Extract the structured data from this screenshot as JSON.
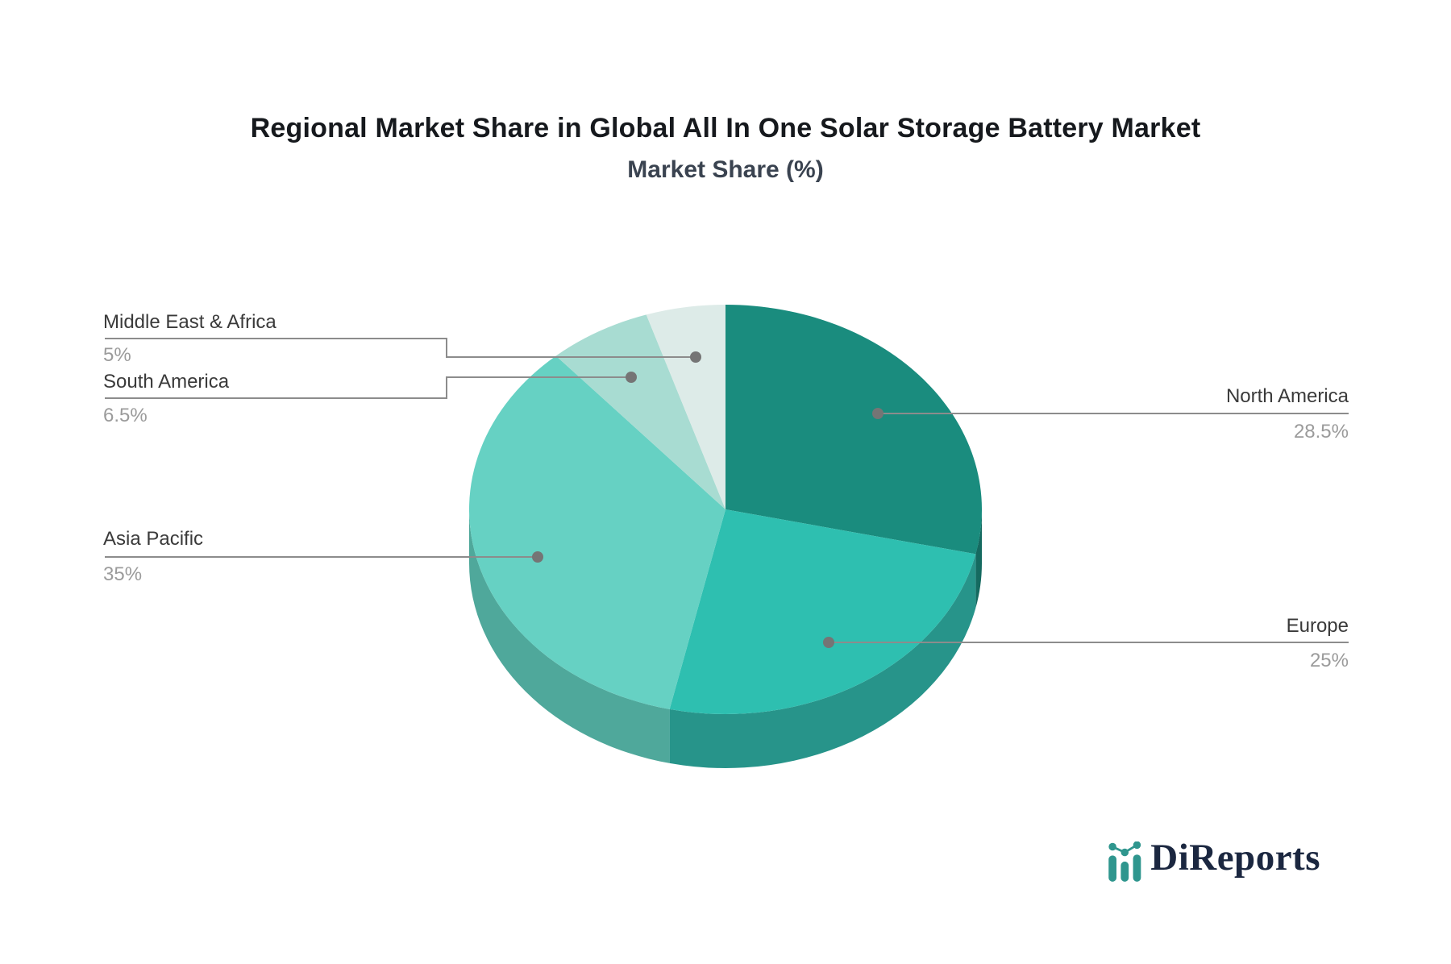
{
  "title": "Regional Market Share in Global All In One Solar Storage Battery Market",
  "subtitle": "Market Share (%)",
  "logo": {
    "text": "DiReports",
    "icon": "bar-line-chart-icon"
  },
  "colors": {
    "title_text": "#16191d",
    "subtitle_text": "#3a4350",
    "label_text": "#3a3a3a",
    "value_text": "#9b9b9b",
    "callout_line": "#8c8c8c",
    "callout_dot": "#757575",
    "brand_teal": "#2f968e",
    "brand_navy": "#1b2740",
    "background": "#ffffff"
  },
  "chart_data": {
    "type": "pie",
    "title": "Regional Market Share in Global All In One Solar Storage Battery Market",
    "subtitle": "Market Share (%)",
    "unit": "%",
    "effect": "3d",
    "start_angle_deg": 0,
    "direction": "clockwise",
    "legend_position": "callout-labels",
    "series": [
      {
        "name": "North America",
        "value": 28.5,
        "label": "28.5%",
        "color": "#1a8c7e",
        "side_color": "#156a60"
      },
      {
        "name": "Europe",
        "value": 25,
        "label": "25%",
        "color": "#2ebfb0",
        "side_color": "#27948a"
      },
      {
        "name": "Asia Pacific",
        "value": 35,
        "label": "35%",
        "color": "#66d1c3",
        "side_color": "#4fa89b"
      },
      {
        "name": "South America",
        "value": 6.5,
        "label": "6.5%",
        "color": "#a8dcd2",
        "side_color": "#86b0a8"
      },
      {
        "name": "Middle East & Africa",
        "value": 5,
        "label": "5%",
        "color": "#ddebe8",
        "side_color": "#b9c9c6"
      }
    ]
  }
}
